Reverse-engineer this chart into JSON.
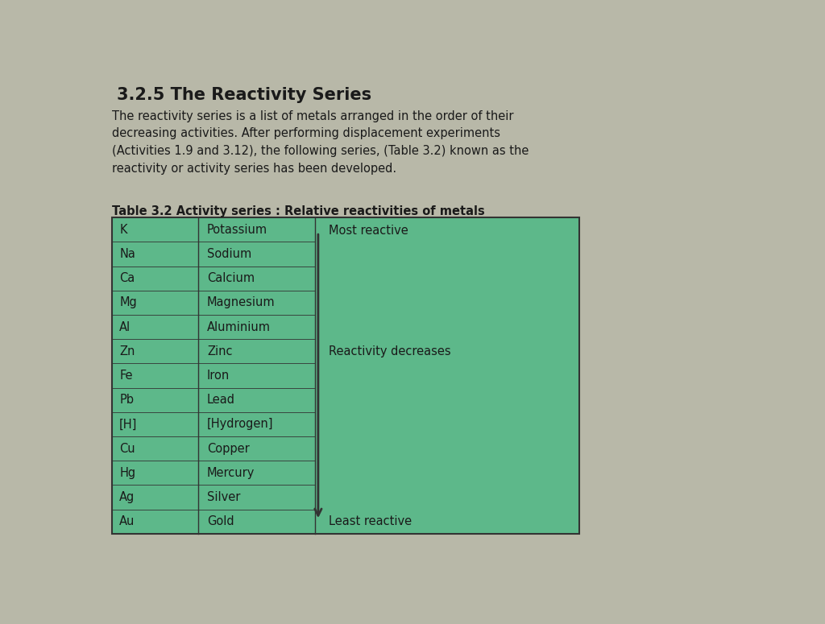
{
  "title": "3.2.5 The Reactivity Series",
  "paragraph": "The reactivity series is a list of metals arranged in the order of their\ndecreasing activities. After performing displacement experiments\n(Activities 1.9 and 3.12), the following series, (Table 3.2) known as the\nreactivity or activity series has been developed.",
  "table_title": "Table 3.2 Activity series : Relative reactivities of metals",
  "symbols": [
    "K",
    "Na",
    "Ca",
    "Mg",
    "Al",
    "Zn",
    "Fe",
    "Pb",
    "[H]",
    "Cu",
    "Hg",
    "Ag",
    "Au"
  ],
  "names": [
    "Potassium",
    "Sodium",
    "Calcium",
    "Magnesium",
    "Aluminium",
    "Zinc",
    "Iron",
    "Lead",
    "[Hydrogen]",
    "Copper",
    "Mercury",
    "Silver",
    "Gold"
  ],
  "most_reactive_label": "Most reactive",
  "least_reactive_label": "Least reactive",
  "reactivity_decreases_label": "Reactivity decreases",
  "table_bg_color": "#5db88a",
  "bg_color": "#b8b8a8",
  "text_color": "#1a1a1a",
  "border_color": "#333333",
  "title_fontsize": 15,
  "body_fontsize": 10.5,
  "table_fontsize": 10.5
}
